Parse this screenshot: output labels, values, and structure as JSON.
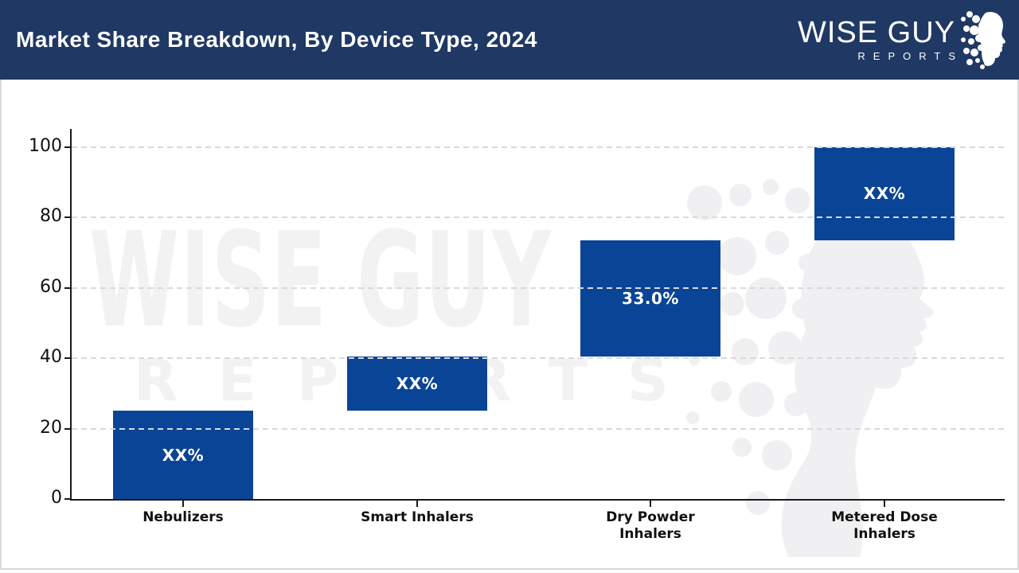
{
  "header": {
    "title": "Market Share Breakdown, By Device Type, 2024",
    "bg_color": "#1f3864",
    "logo": {
      "wordmark": "WISE GUY",
      "subtext": "REPORTS"
    }
  },
  "watermark": {
    "wordmark": "WISE GUY",
    "subtext": "REPORTS"
  },
  "chart_data": {
    "type": "bar",
    "subtype": "floating-waterfall-segments",
    "title": "Market Share Breakdown, By Device Type, 2024",
    "categories": [
      "Nebulizers",
      "Smart Inhalers",
      "Dry Powder\nInhalers",
      "Metered Dose\nInhalers"
    ],
    "segments": [
      {
        "category": "Nebulizers",
        "start": 0,
        "end": 25,
        "label": "XX%"
      },
      {
        "category": "Smart Inhalers",
        "start": 25,
        "end": 40.5,
        "label": "XX%"
      },
      {
        "category": "Dry Powder Inhalers",
        "start": 40.5,
        "end": 73.5,
        "label": "33.0%"
      },
      {
        "category": "Metered Dose Inhalers",
        "start": 73.5,
        "end": 100,
        "label": "XX%"
      }
    ],
    "y_ticks": [
      0,
      20,
      40,
      60,
      80,
      100
    ],
    "ylim": [
      0,
      105
    ],
    "xlabel": "",
    "ylabel": "",
    "grid": "horizontal-dashed",
    "legend": "none",
    "bar_color": "#0a4497",
    "bar_label_color": "#ffffff",
    "axis_color": "#1a1a1a",
    "grid_color": "#d9d9d9",
    "watermark_color": "#f2f2f2"
  }
}
